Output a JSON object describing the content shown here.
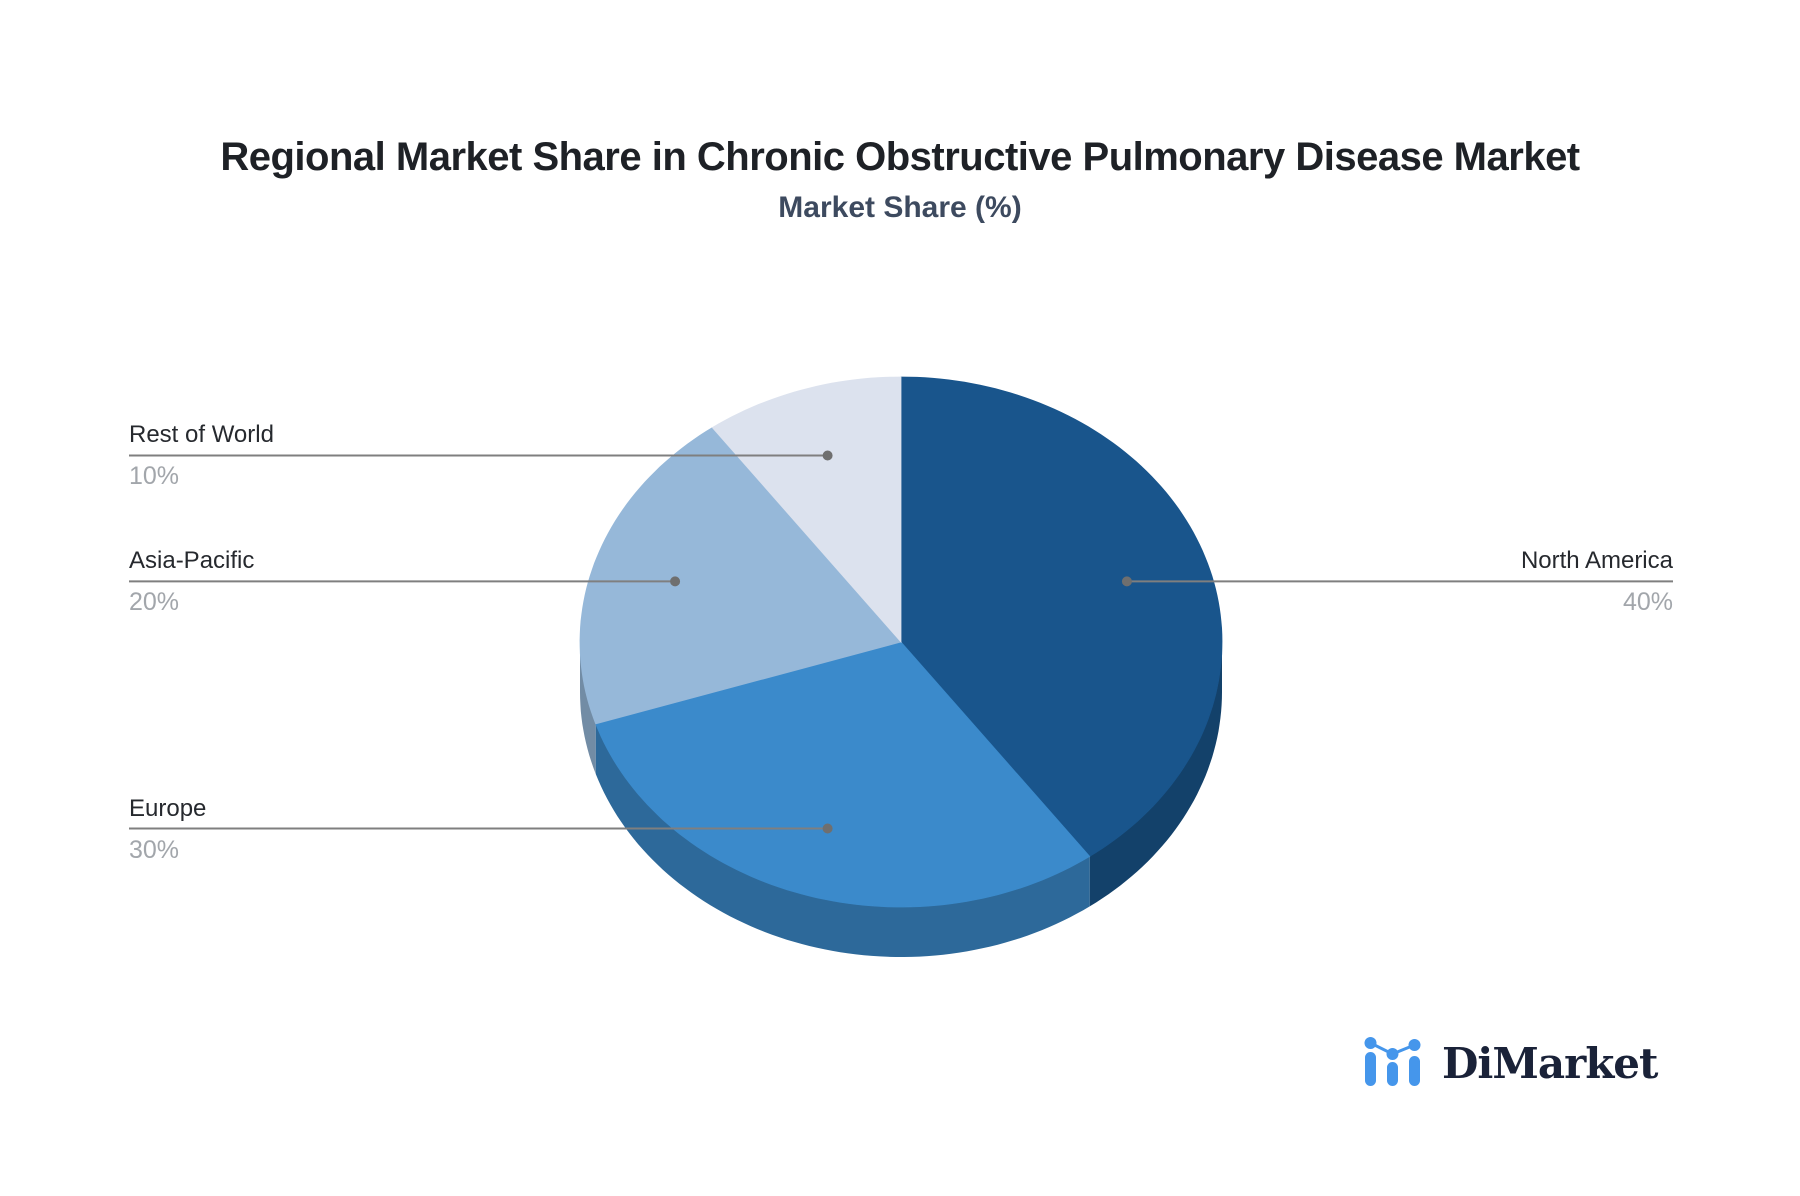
{
  "page": {
    "background": "#FFFFFF"
  },
  "chart_data": {
    "type": "pie",
    "title": "Regional Market Share in Chronic Obstructive Pulmonary Disease Market",
    "subtitle": "Market Share (%)",
    "unit": "%",
    "effect": "3d",
    "direction": "clockwise",
    "start_angle": "12-oclock",
    "slices": [
      {
        "label": "North America",
        "value": 40,
        "pct_label": "40%",
        "color": "#19558C",
        "callout_side": "right"
      },
      {
        "label": "Europe",
        "value": 30,
        "pct_label": "30%",
        "color": "#3B8ACB",
        "callout_side": "left"
      },
      {
        "label": "Asia-Pacific",
        "value": 20,
        "pct_label": "20%",
        "color": "#96B8D9",
        "callout_side": "left"
      },
      {
        "label": "Rest of World",
        "value": 10,
        "pct_label": "10%",
        "color": "#DCE2EE",
        "callout_side": "left"
      }
    ],
    "legend": "callout-labels",
    "leader_line_color": "#7F7F7F",
    "leader_dot_color": "#6F6F6F",
    "title_color": "#1E2126",
    "subtitle_color": "#3D4A5F",
    "label_color": "#26292E",
    "pct_color": "#A2A6AB"
  },
  "brand": {
    "name": "DiMarket",
    "text_color": "#1A2238",
    "icon_color": "#4596EB",
    "icon": "bar-chart-logo-icon"
  }
}
